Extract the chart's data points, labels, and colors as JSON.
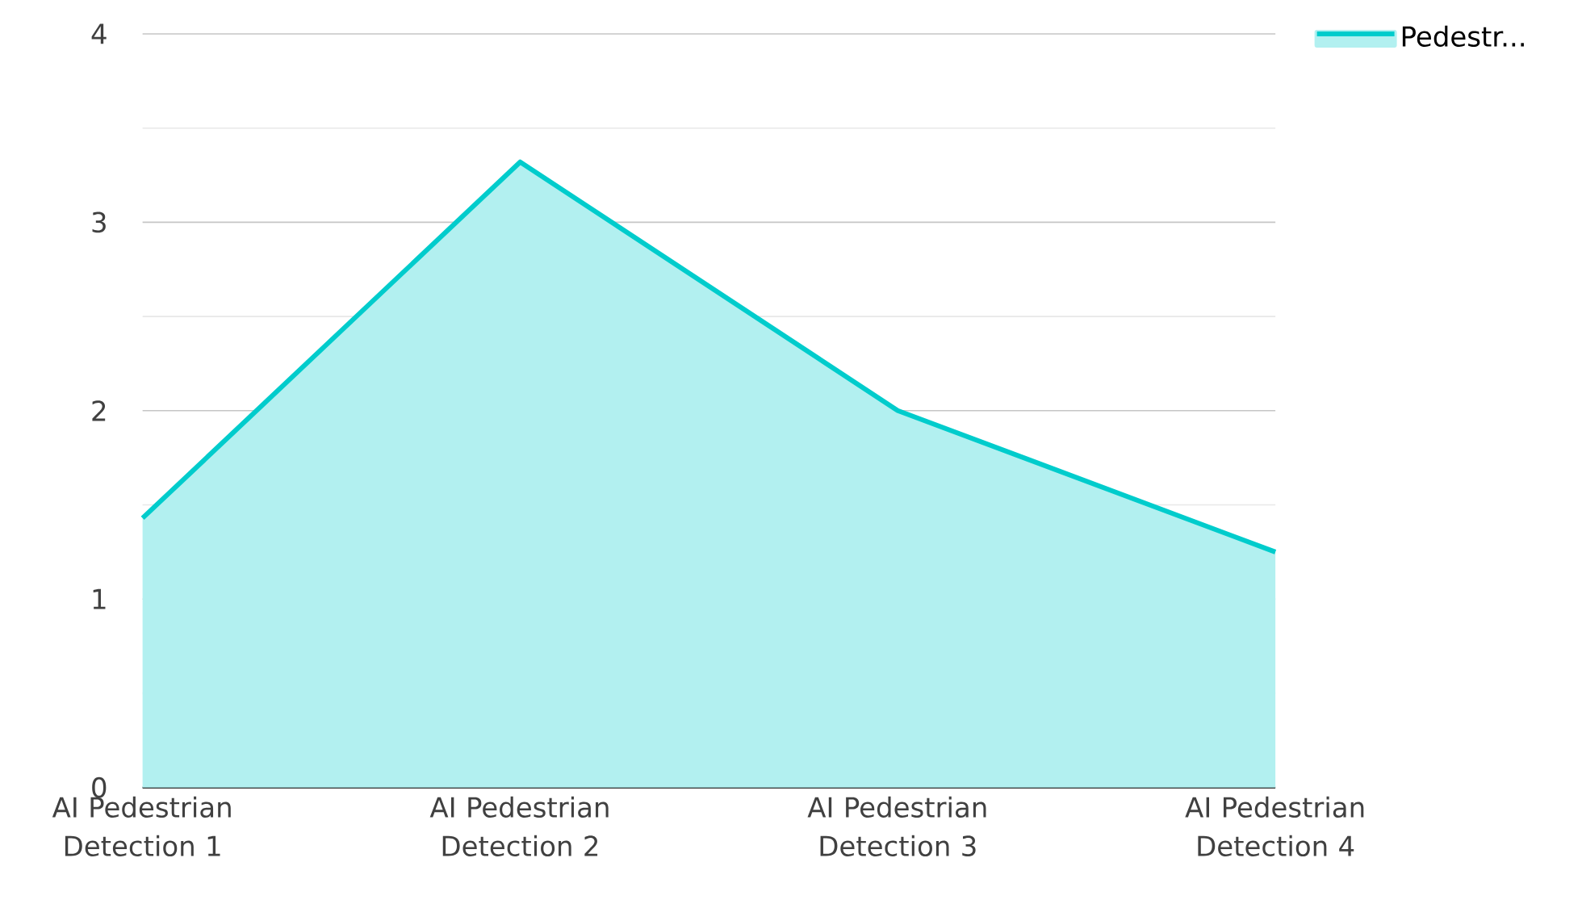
{
  "chart_data": {
    "type": "area",
    "categories": [
      "AI Pedestrian Detection 1",
      "AI Pedestrian Detection 2",
      "AI Pedestrian Detection 3",
      "AI Pedestrian Detection 4"
    ],
    "series": [
      {
        "name": "Pedestr...",
        "color": "#00cccc",
        "values": [
          1.43,
          3.32,
          2.0,
          1.25
        ]
      }
    ],
    "ylim": [
      0,
      4
    ],
    "yticks": [
      0,
      1,
      2,
      3,
      4
    ],
    "grid": "y",
    "legend": "top right"
  }
}
